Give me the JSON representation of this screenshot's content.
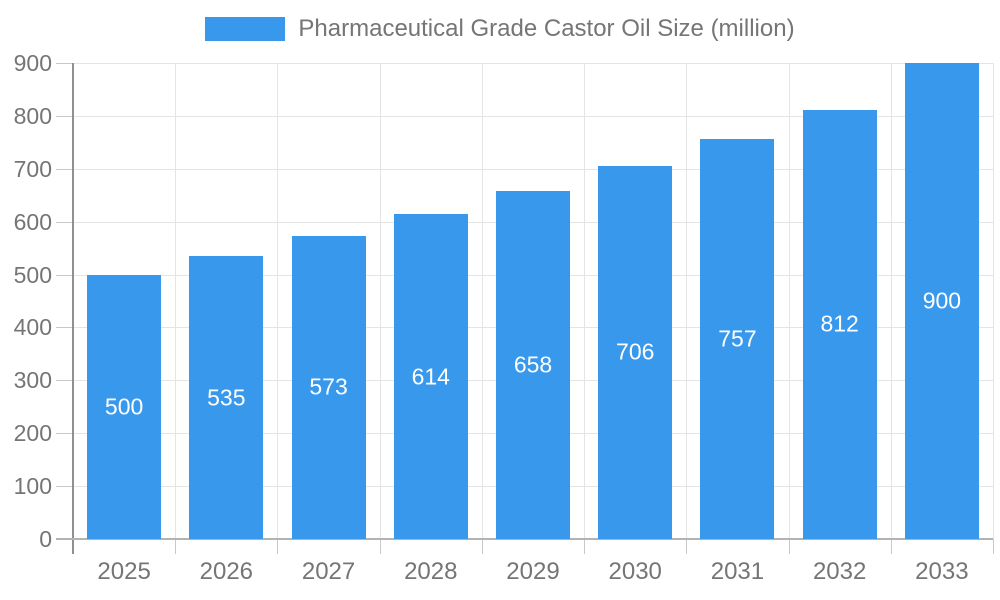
{
  "chart_data": {
    "type": "bar",
    "title": "Pharmaceutical Grade Castor Oil Size (million)",
    "legend_entries": [
      "Pharmaceutical Grade Castor Oil Size (million)"
    ],
    "legend_position": "top",
    "categories": [
      "2025",
      "2026",
      "2027",
      "2028",
      "2029",
      "2030",
      "2031",
      "2032",
      "2033"
    ],
    "values": [
      500,
      535,
      573,
      614,
      658,
      706,
      757,
      812,
      900
    ],
    "bar_value_labels": [
      "500",
      "535",
      "573",
      "614",
      "658",
      "706",
      "757",
      "812",
      "900"
    ],
    "xlabel": "",
    "ylabel": "",
    "ylim": [
      0,
      900
    ],
    "ytick_step": 100,
    "ytick_labels": [
      "0",
      "100",
      "200",
      "300",
      "400",
      "500",
      "600",
      "700",
      "800",
      "900"
    ],
    "grid": true,
    "colors": {
      "bar": "#3898ec",
      "bar_label_text": "#ffffff",
      "axis_text": "#757575",
      "gridline": "#e4e4e4",
      "tick": "#c9c9c9",
      "y_axis_line": "#909090",
      "x_axis_line": "#b3b3b3"
    }
  }
}
